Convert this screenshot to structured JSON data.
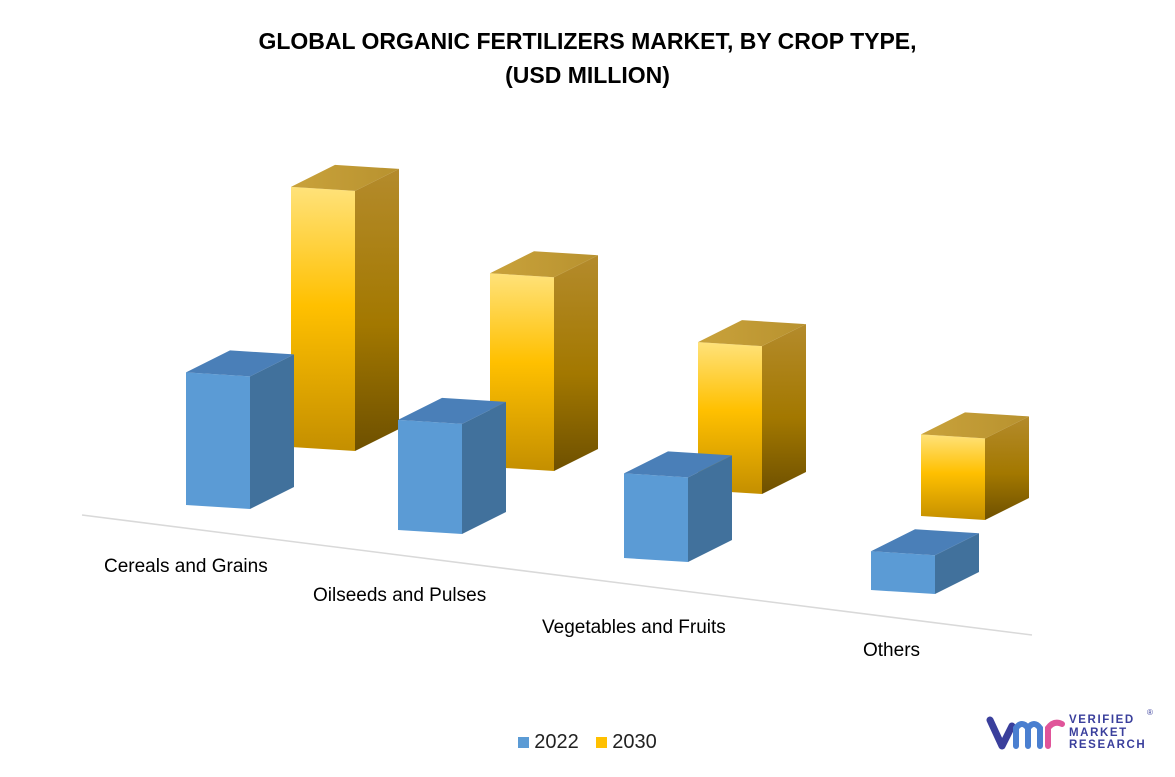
{
  "chart_data": {
    "type": "bar",
    "title": [
      "GLOBAL ORGANIC FERTILIZERS MARKET, BY CROP TYPE,",
      "(USD MILLION)"
    ],
    "categories": [
      "Cereals and Grains",
      "Oilseeds and Pulses",
      "Vegetables and Fruits",
      "Others"
    ],
    "series": [
      {
        "name": "2022",
        "values": [
          1.3,
          1.08,
          0.83,
          0.38
        ]
      },
      {
        "name": "2030",
        "values": [
          2.55,
          1.9,
          1.45,
          0.8
        ]
      }
    ],
    "colors": {
      "2022": "#5b9bd5",
      "2030": "#ffc000"
    },
    "grid": false,
    "legend_position": "bottom",
    "style": "3d-column"
  },
  "logo": {
    "lines": [
      "VERIFIED",
      "MARKET",
      "RESEARCH"
    ],
    "mark": "vmr",
    "registered": "®"
  }
}
